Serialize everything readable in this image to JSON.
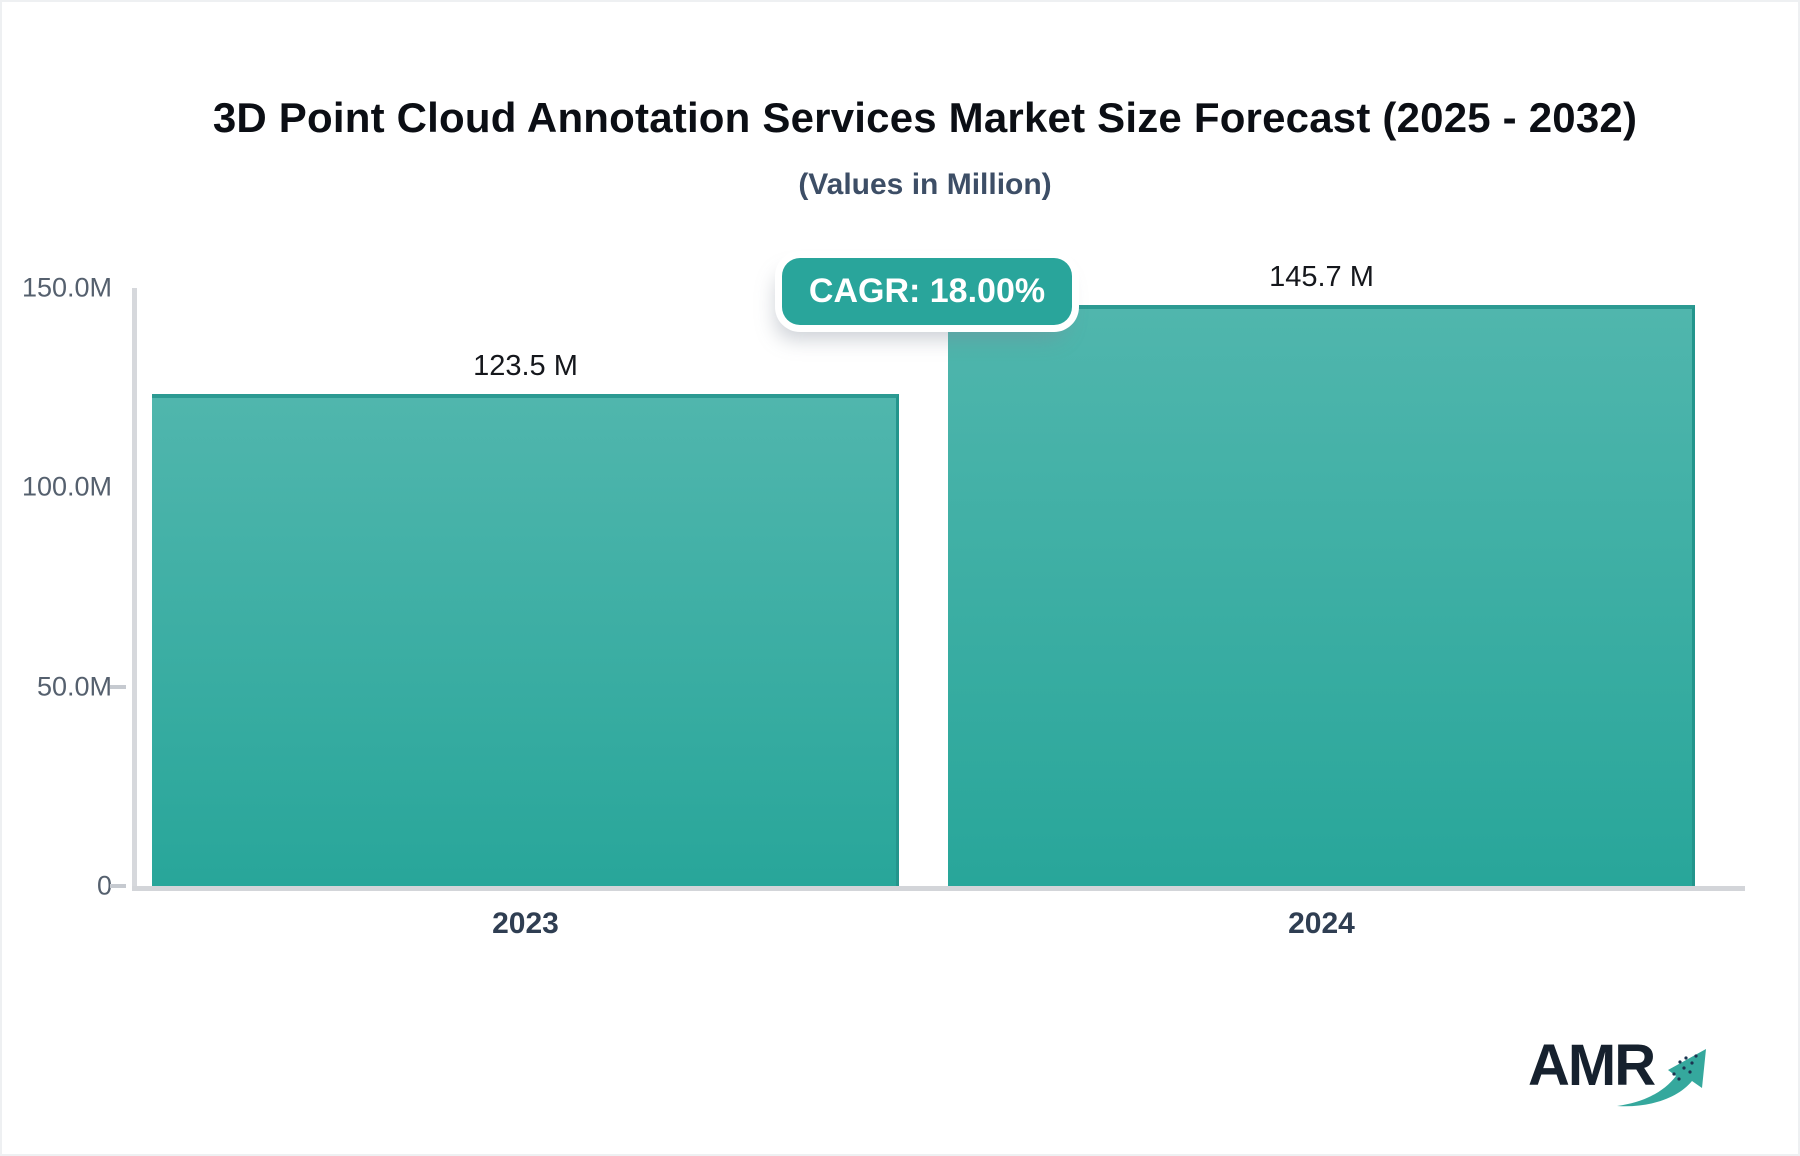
{
  "title": "3D Point Cloud Annotation Services Market Size Forecast (2025 - 2032)",
  "subtitle": "(Values in Million)",
  "cagr_badge": {
    "label": "CAGR: 18.00%"
  },
  "logo": {
    "text": "AMR",
    "arrow_icon": "growth-arrow"
  },
  "colors": {
    "bar_gradient_top": "#50b6ad",
    "bar_gradient_bottom": "#28a69a",
    "bar_edge_top": "#2c9a92",
    "bar_edge_right": "#23958c",
    "badge_bg": "#29a59b",
    "badge_text": "#ffffff",
    "axis_line": "#d6d8dc",
    "title_text": "#0b0e14",
    "subtitle_text": "#3d4e66",
    "y_tick_text": "#55606e",
    "x_tick_text": "#2f3e52",
    "value_text": "#15171c",
    "logo_text": "#16212e",
    "logo_arrow": "#35a89d"
  },
  "chart_data": {
    "type": "bar",
    "title": "3D Point Cloud Annotation Services Market Size Forecast (2025 - 2032)",
    "subtitle": "(Values in Million)",
    "categories": [
      "2023",
      "2024"
    ],
    "values": [
      123.5,
      145.7
    ],
    "value_labels": [
      "123.5 M",
      "145.7 M"
    ],
    "xlabel": "",
    "ylabel": "",
    "ylim": [
      0,
      150
    ],
    "yticks": [
      {
        "label": "150.0M",
        "value": 150,
        "dash": false
      },
      {
        "label": "100.0M",
        "value": 100,
        "dash": false
      },
      {
        "label": "50.0M",
        "value": 50,
        "dash": true
      },
      {
        "label": "0",
        "value": 0,
        "dash": true
      }
    ],
    "grid": false,
    "legend": false,
    "annotations": [
      "CAGR: 18.00%"
    ]
  }
}
